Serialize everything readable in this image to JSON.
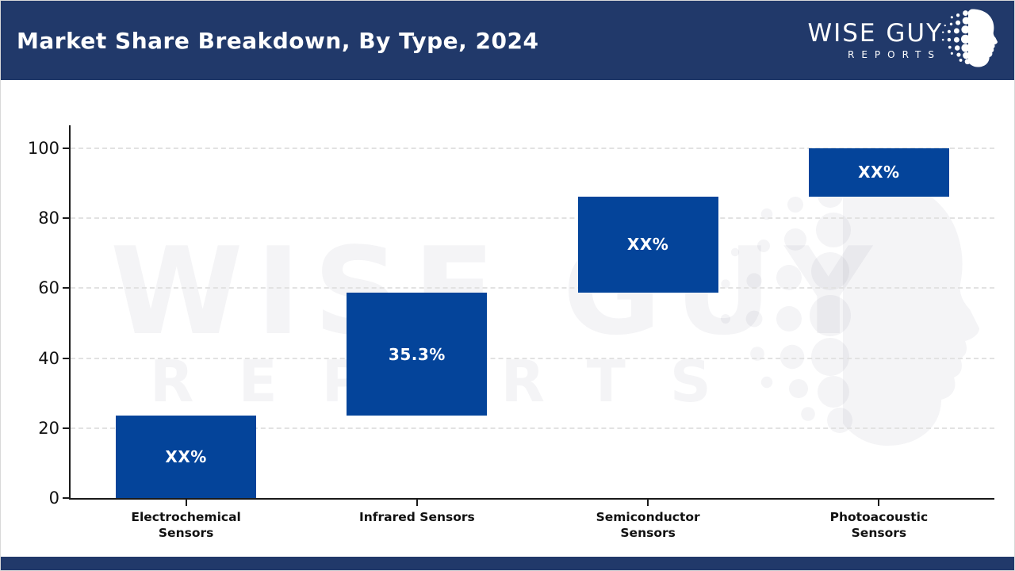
{
  "header": {
    "title": "Market Share Breakdown, By Type, 2024",
    "bg_color": "#21396a",
    "logo": {
      "line1": "WISE GUY",
      "line2": "REPORTS"
    }
  },
  "watermark": {
    "line1": "WISE GUY",
    "line2": "REPORTS"
  },
  "footer": {
    "bg_color": "#21396a"
  },
  "chart_data": {
    "type": "bar",
    "subtype": "waterfall-floating-bars",
    "title": "Market Share Breakdown, By Type, 2024",
    "categories": [
      "Electrochemical Sensors",
      "Infrared Sensors",
      "Semiconductor Sensors",
      "Photoacoustic Sensors"
    ],
    "category_display_lines": [
      [
        "Electrochemical",
        "Sensors"
      ],
      [
        "Infrared Sensors"
      ],
      [
        "Semiconductor",
        "Sensors"
      ],
      [
        "Photoacoustic",
        "Sensors"
      ]
    ],
    "segments": [
      {
        "category": "Electrochemical Sensors",
        "start": 0,
        "end": 23.5,
        "label": "XX%"
      },
      {
        "category": "Infrared Sensors",
        "start": 23.5,
        "end": 58.8,
        "label": "35.3%"
      },
      {
        "category": "Semiconductor Sensors",
        "start": 58.8,
        "end": 86.2,
        "label": "XX%"
      },
      {
        "category": "Photoacoustic Sensors",
        "start": 86.2,
        "end": 100,
        "label": "XX%"
      }
    ],
    "xlabel": "",
    "ylabel": "",
    "yticks": [
      0,
      20,
      40,
      60,
      80,
      100
    ],
    "ylim": [
      0,
      105
    ],
    "grid": "horizontal-dashed",
    "legend": "none",
    "bar_color": "#04449a",
    "axis_color": "#1a1a1a",
    "bar_label_color": "#ffffff"
  }
}
